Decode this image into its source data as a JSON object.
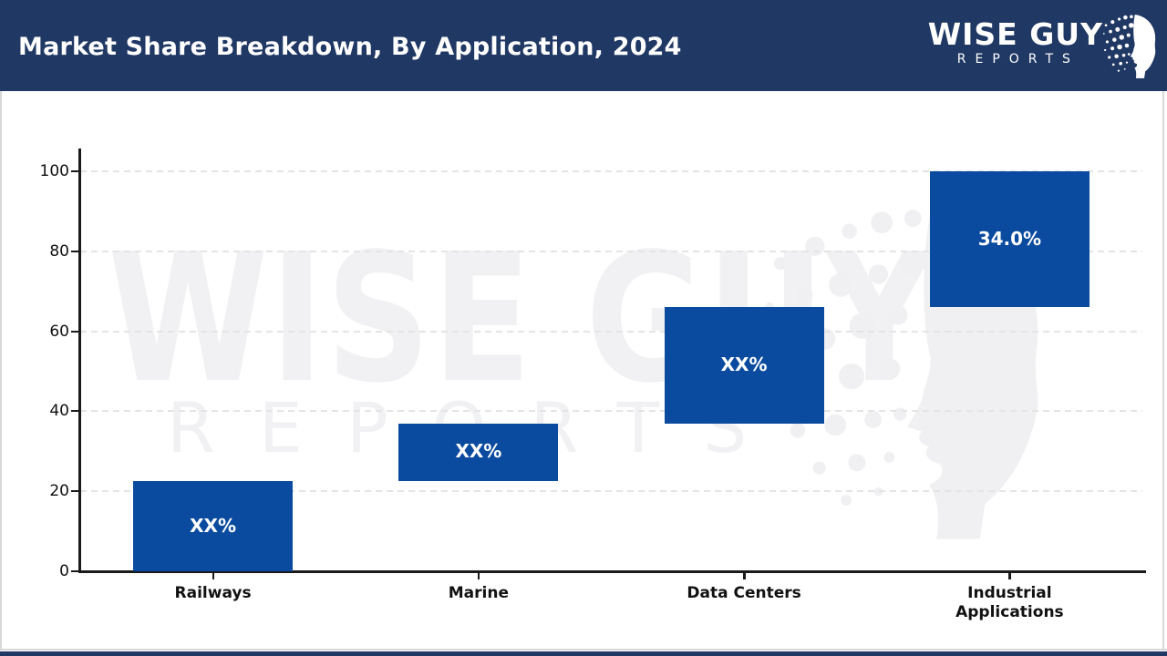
{
  "header": {
    "title": "Market Share Breakdown, By Application, 2024"
  },
  "brand": {
    "line1": "WISE GUY",
    "line2": "REPORTS"
  },
  "watermark": {
    "line1": "WISE GUY",
    "line2": "REPORTS"
  },
  "chart_data": {
    "type": "bar",
    "subtype": "floating-waterfall",
    "title": "Market Share Breakdown, By Application, 2024",
    "xlabel": "",
    "ylabel": "",
    "ylim": [
      0,
      100
    ],
    "yticks": [
      0,
      20,
      40,
      60,
      80,
      100
    ],
    "grid": "horizontal-dashed",
    "legend": "none",
    "categories": [
      "Railways",
      "Marine",
      "Data Centers",
      "Industrial Applications"
    ],
    "segments": [
      {
        "category": "Railways",
        "start": 0,
        "end": 22.5,
        "label": "XX%"
      },
      {
        "category": "Marine",
        "start": 22.5,
        "end": 37,
        "label": "XX%"
      },
      {
        "category": "Data Centers",
        "start": 37,
        "end": 66,
        "label": "XX%"
      },
      {
        "category": "Industrial Applications",
        "start": 66,
        "end": 100,
        "label": "34.0%"
      }
    ],
    "values": [
      22.5,
      14.5,
      29,
      34
    ],
    "colors": {
      "bar": "#0b4b9f",
      "bar_label": "#ffffff",
      "header_bg": "#203864",
      "footer_bg": "#203864",
      "grid": "#e4e4e4",
      "axis": "#1a1a1a",
      "watermark": "#f1f1f3"
    }
  }
}
